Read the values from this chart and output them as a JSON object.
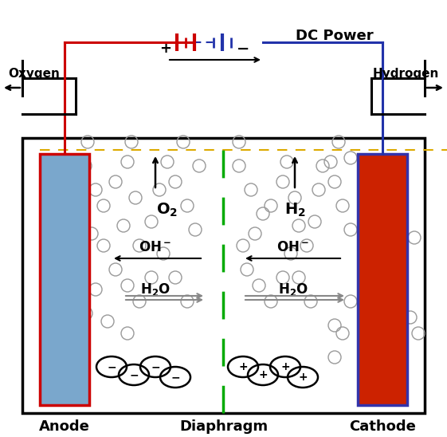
{
  "bg_color": "#ffffff",
  "tank_facecolor": "#ffffff",
  "tank_border": "#000000",
  "anode_fill": "#7aa7cc",
  "anode_border": "#cc0000",
  "cathode_fill": "#cc2200",
  "cathode_border": "#3333aa",
  "diaphragm_color": "#00aa00",
  "wire_left_color": "#cc0000",
  "wire_right_color": "#2233aa",
  "label_anode": "Anode",
  "label_cathode": "Cathode",
  "label_diaphragm": "Diaphragm",
  "label_oxygen": "Oxygen",
  "label_hydrogen": "Hydrogen",
  "label_dcpower": "DC Power",
  "label_o2": "$\\mathbf{O_2}$",
  "label_h2": "$\\mathbf{H_2}$",
  "label_oh": "$\\mathbf{OH^-}$",
  "label_h2o": "$\\mathbf{H_2O}$",
  "bubble_color": "#aaaaaa",
  "ion_color": "#000000"
}
